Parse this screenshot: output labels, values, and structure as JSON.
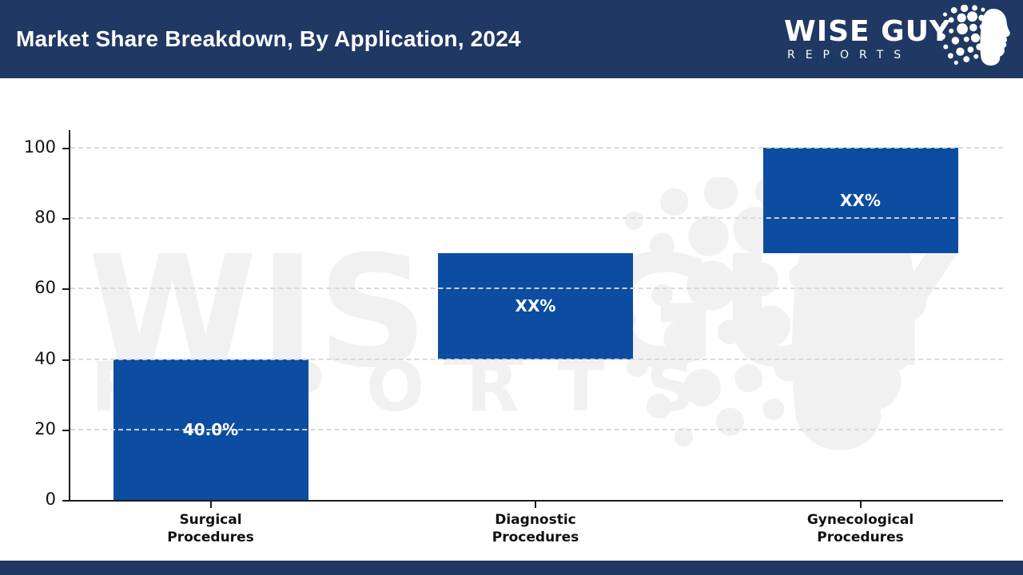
{
  "header": {
    "title": "Market Share Breakdown, By Application, 2024",
    "logo": {
      "brand": "WISE GUY",
      "sub": "REPORTS"
    }
  },
  "watermark": {
    "line1": "WISE GUY",
    "line2": "REPORTS"
  },
  "chart_data": {
    "type": "bar",
    "variant": "floating-breakdown-waterfall",
    "title": "Market Share Breakdown, By Application, 2024",
    "categories": [
      "Surgical Procedures",
      "Diagnostic Procedures",
      "Gynecological Procedures"
    ],
    "bars": [
      {
        "category": "Surgical Procedures",
        "start": 0,
        "end": 40,
        "label": "40.0%"
      },
      {
        "category": "Diagnostic Procedures",
        "start": 40,
        "end": 70,
        "label": "XX%"
      },
      {
        "category": "Gynecological Procedures",
        "start": 70,
        "end": 100,
        "label": "XX%"
      }
    ],
    "xlabel": "",
    "ylabel": "",
    "ylim": [
      0,
      100
    ],
    "yticks": [
      0,
      20,
      40,
      60,
      80,
      100
    ],
    "grid": "horizontal-dashed",
    "legend": "none",
    "colors": {
      "bar": "#0C4DA2",
      "bar_label": "#FFFFFF",
      "grid": "#D9D9D9",
      "axis": "#1A1A1A",
      "header_bg": "#203864",
      "header_text": "#FFFFFF",
      "watermark": "#F1F1F1"
    }
  }
}
